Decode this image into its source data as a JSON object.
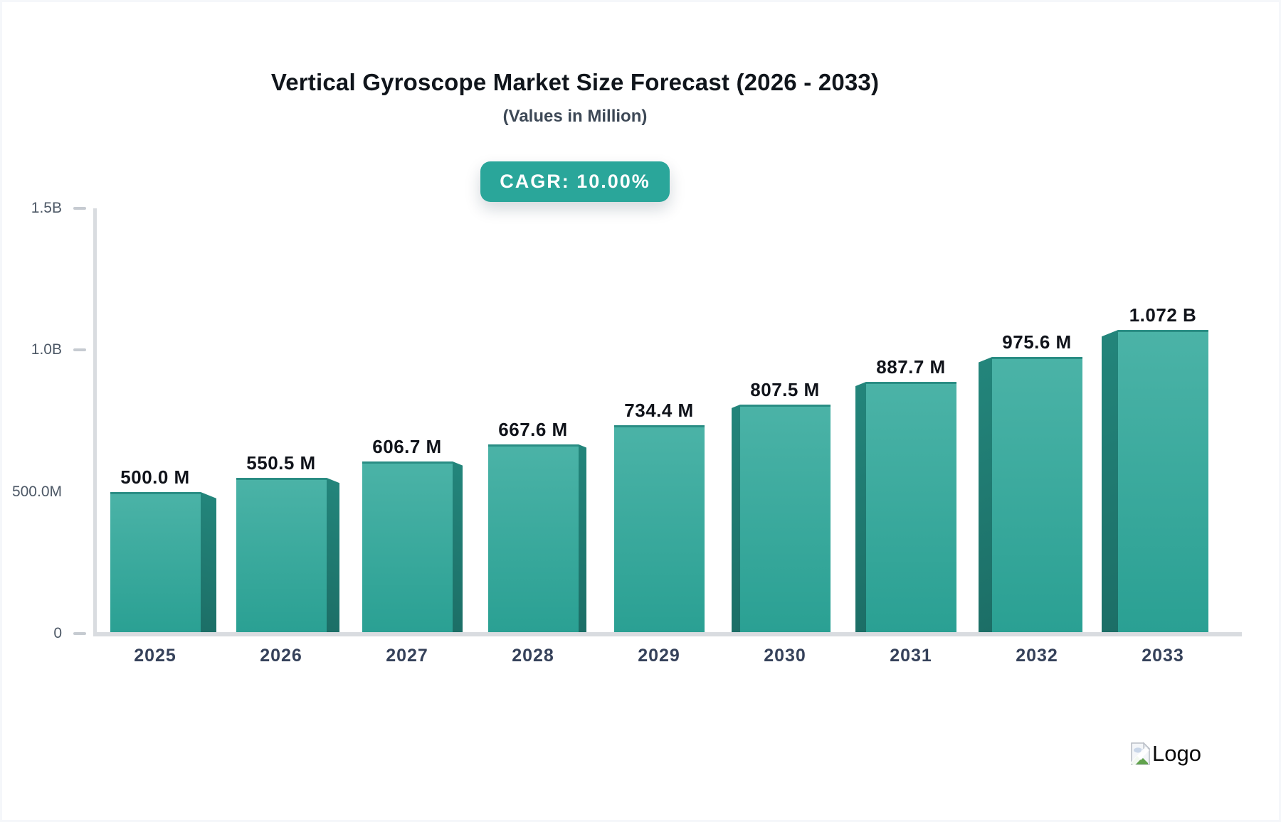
{
  "title": "Vertical Gyroscope Market Size Forecast (2026 - 2033)",
  "subtitle": "(Values in Million)",
  "cagr_badge": "CAGR: 10.00%",
  "logo": {
    "icon": "broken-image-icon",
    "alt_text": "Logo"
  },
  "chart_data": {
    "type": "bar",
    "title": "Vertical Gyroscope Market Size Forecast (2026 - 2033)",
    "subtitle": "(Values in Million)",
    "categories": [
      "2025",
      "2026",
      "2027",
      "2028",
      "2029",
      "2030",
      "2031",
      "2032",
      "2033"
    ],
    "values": [
      500.0,
      550.5,
      606.7,
      667.6,
      734.4,
      807.5,
      887.7,
      975.6,
      1072
    ],
    "value_labels": [
      "500.0 M",
      "550.5 M",
      "606.7 M",
      "667.6 M",
      "734.4 M",
      "807.5 M",
      "887.7 M",
      "975.6 M",
      "1.072 B"
    ],
    "unit_of_values": "millions",
    "xlabel": "",
    "ylabel": "",
    "ylim": [
      0,
      1500
    ],
    "y_ticks": [
      {
        "label": "1.5B",
        "value": 1500,
        "tick_mark": true
      },
      {
        "label": "1.0B",
        "value": 1000,
        "tick_mark": true
      },
      {
        "label": "500.0M",
        "value": 500,
        "tick_mark": false
      },
      {
        "label": "0",
        "value": 0,
        "tick_mark": true
      }
    ],
    "grid": false,
    "legend": false,
    "bar_style": "3d-extruded, perspective vanishing toward center column (2029)",
    "colors": {
      "bar_top": "#4bb3a7",
      "bar_bottom": "#2aa093",
      "bar_edge": "#2a8d84",
      "bar_side_top": "#23857b",
      "bar_side_bottom": "#1c6e66",
      "badge_bg": "#2aa69a",
      "axis_line": "#d9dce0",
      "tick": "#c6cbd1",
      "y_label": "#4d5866",
      "x_label": "#35415a",
      "value_label": "#10131a",
      "title": "#10151b",
      "subtitle": "#3d4856"
    },
    "layout_hints": {
      "bar_face_width": 127,
      "side3d_widths": [
        22,
        18,
        14,
        11,
        0,
        12,
        15,
        19,
        23
      ],
      "side3d_direction": [
        "right",
        "right",
        "right",
        "right",
        "none",
        "left",
        "left",
        "left",
        "left"
      ]
    }
  }
}
